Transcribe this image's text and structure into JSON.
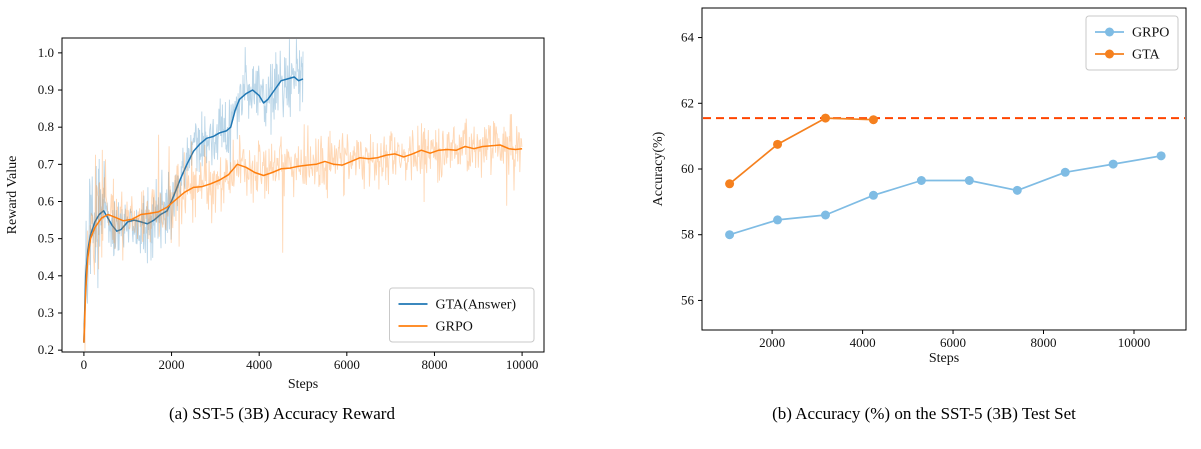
{
  "chart_data": [
    {
      "type": "line",
      "caption": "(a) SST-5 (3B) Accuracy Reward",
      "xlabel": "Steps",
      "ylabel": "Reward Value",
      "xlim": [
        -500,
        10500
      ],
      "ylim": [
        0.195,
        1.04
      ],
      "xticks": [
        0,
        2000,
        4000,
        6000,
        8000,
        10000
      ],
      "yticks": [
        0.2,
        0.3,
        0.4,
        0.5,
        0.6,
        0.7,
        0.8,
        0.9,
        1.0
      ],
      "ydecimals": 1,
      "grid": false,
      "legend_position": "lower right",
      "series": [
        {
          "name": "GTA(Answer)",
          "color": "#1f77b4",
          "noise_band": 0.05,
          "x": [
            0,
            40,
            90,
            150,
            250,
            350,
            450,
            550,
            650,
            750,
            850,
            1000,
            1150,
            1300,
            1450,
            1600,
            1750,
            1900,
            2050,
            2200,
            2350,
            2500,
            2650,
            2800,
            2950,
            3100,
            3250,
            3350,
            3450,
            3550,
            3700,
            3850,
            4000,
            4100,
            4200,
            4350,
            4500,
            4650,
            4800,
            4900,
            5000
          ],
          "y": [
            0.22,
            0.4,
            0.47,
            0.51,
            0.545,
            0.565,
            0.575,
            0.555,
            0.535,
            0.52,
            0.525,
            0.545,
            0.55,
            0.545,
            0.54,
            0.55,
            0.565,
            0.575,
            0.615,
            0.66,
            0.7,
            0.735,
            0.755,
            0.77,
            0.775,
            0.785,
            0.79,
            0.8,
            0.845,
            0.875,
            0.89,
            0.9,
            0.885,
            0.865,
            0.875,
            0.9,
            0.925,
            0.93,
            0.935,
            0.925,
            0.93
          ]
        },
        {
          "name": "GRPO",
          "color": "#ff7f0e",
          "noise_band": 0.045,
          "x": [
            0,
            40,
            90,
            150,
            250,
            400,
            550,
            700,
            900,
            1100,
            1300,
            1500,
            1700,
            1900,
            2100,
            2300,
            2500,
            2700,
            2900,
            3100,
            3300,
            3500,
            3700,
            3900,
            4100,
            4300,
            4500,
            4700,
            4900,
            5100,
            5300,
            5500,
            5700,
            5900,
            6100,
            6300,
            6500,
            6700,
            6900,
            7100,
            7300,
            7500,
            7700,
            7900,
            8100,
            8300,
            8500,
            8700,
            8900,
            9100,
            9300,
            9500,
            9700,
            9850,
            10000
          ],
          "y": [
            0.22,
            0.36,
            0.45,
            0.5,
            0.53,
            0.555,
            0.565,
            0.558,
            0.548,
            0.552,
            0.565,
            0.568,
            0.572,
            0.585,
            0.605,
            0.625,
            0.638,
            0.64,
            0.648,
            0.658,
            0.672,
            0.7,
            0.692,
            0.678,
            0.67,
            0.678,
            0.688,
            0.69,
            0.695,
            0.698,
            0.7,
            0.708,
            0.7,
            0.698,
            0.708,
            0.718,
            0.715,
            0.718,
            0.725,
            0.728,
            0.72,
            0.728,
            0.738,
            0.73,
            0.738,
            0.74,
            0.738,
            0.748,
            0.742,
            0.748,
            0.75,
            0.752,
            0.742,
            0.74,
            0.742
          ]
        }
      ]
    },
    {
      "type": "line",
      "caption": "(b) Accuracy (%) on the SST-5 (3B) Test Set",
      "xlabel": "Steps",
      "ylabel": "Accuracy(%)",
      "xlim": [
        450,
        11150
      ],
      "ylim": [
        55.1,
        64.9
      ],
      "xticks": [
        2000,
        4000,
        6000,
        8000,
        10000
      ],
      "yticks": [
        56,
        58,
        60,
        62,
        64
      ],
      "ydecimals": 0,
      "grid": false,
      "legend_position": "upper right",
      "baseline": {
        "y": 61.55,
        "color": "#ff4500",
        "style": "dashed"
      },
      "series": [
        {
          "name": "GRPO",
          "color": "#7fbce4",
          "marker": "o",
          "x": [
            1060,
            2120,
            3180,
            4240,
            5300,
            6360,
            7420,
            8480,
            9540,
            10600
          ],
          "y": [
            58.0,
            58.45,
            58.6,
            59.2,
            59.65,
            59.65,
            59.35,
            59.9,
            60.15,
            60.4
          ]
        },
        {
          "name": "GTA",
          "color": "#f5801e",
          "marker": "o",
          "x": [
            1060,
            2120,
            3180,
            4240
          ],
          "y": [
            59.55,
            60.75,
            61.55,
            61.5
          ]
        }
      ]
    }
  ]
}
